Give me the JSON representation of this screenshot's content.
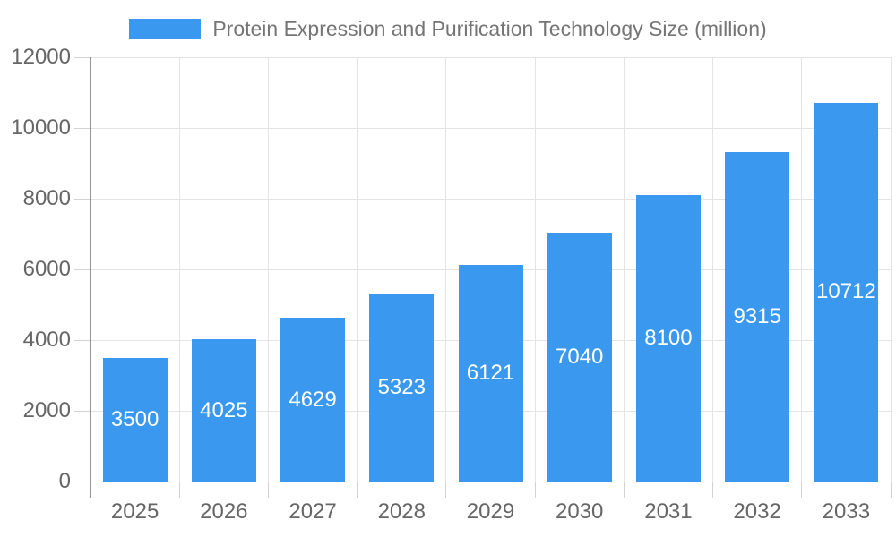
{
  "legend": {
    "label": "Protein Expression and Purification Technology Size (million)"
  },
  "chart_data": {
    "type": "bar",
    "title": "Protein Expression and Purification Technology Size (million)",
    "series_name": "Protein Expression and Purification Technology Size (million)",
    "categories": [
      "2025",
      "2026",
      "2027",
      "2028",
      "2029",
      "2030",
      "2031",
      "2032",
      "2033"
    ],
    "values": [
      3500,
      4025,
      4629,
      5323,
      6121,
      7040,
      8100,
      9315,
      10712
    ],
    "xlabel": "",
    "ylabel": "",
    "ylim": [
      0,
      12000
    ],
    "yticks": [
      0,
      2000,
      4000,
      6000,
      8000,
      10000,
      12000
    ],
    "grid": true,
    "legend_position": "top",
    "bar_labels_inside": true
  },
  "colors": {
    "bar": "#3A99EE",
    "grid": "#e3e3e3",
    "tick": "#d2d2d2",
    "axis": "#949494",
    "axis_label": "#666666",
    "legend_text": "#757575",
    "bar_label": "#ffffff",
    "background": "#ffffff"
  }
}
